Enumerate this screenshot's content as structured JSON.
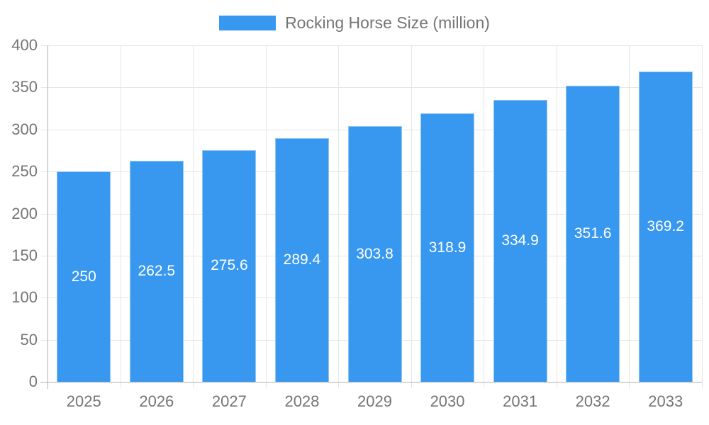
{
  "legend": {
    "label": "Rocking Horse Size (million)"
  },
  "chart_data": {
    "type": "bar",
    "title": "Rocking Horse Size (million)",
    "categories": [
      "2025",
      "2026",
      "2027",
      "2028",
      "2029",
      "2030",
      "2031",
      "2032",
      "2033"
    ],
    "series": [
      {
        "name": "Rocking Horse Size (million)",
        "values": [
          250,
          262.5,
          275.6,
          289.4,
          303.8,
          318.9,
          334.9,
          351.6,
          369.2
        ]
      }
    ],
    "xlabel": "",
    "ylabel": "",
    "ylim": [
      0,
      400
    ],
    "yticks": [
      0,
      50,
      100,
      150,
      200,
      250,
      300,
      350,
      400
    ],
    "grid": true,
    "legend_position": "top",
    "data_labels_position": "inside-center"
  },
  "colors": {
    "bar_fill": "#3898ef",
    "grid_line": "#e6e6e6",
    "axis_line": "#b0b0b0",
    "tick_text": "#757575",
    "bar_label_text": "#ffffff",
    "background": "#ffffff"
  }
}
